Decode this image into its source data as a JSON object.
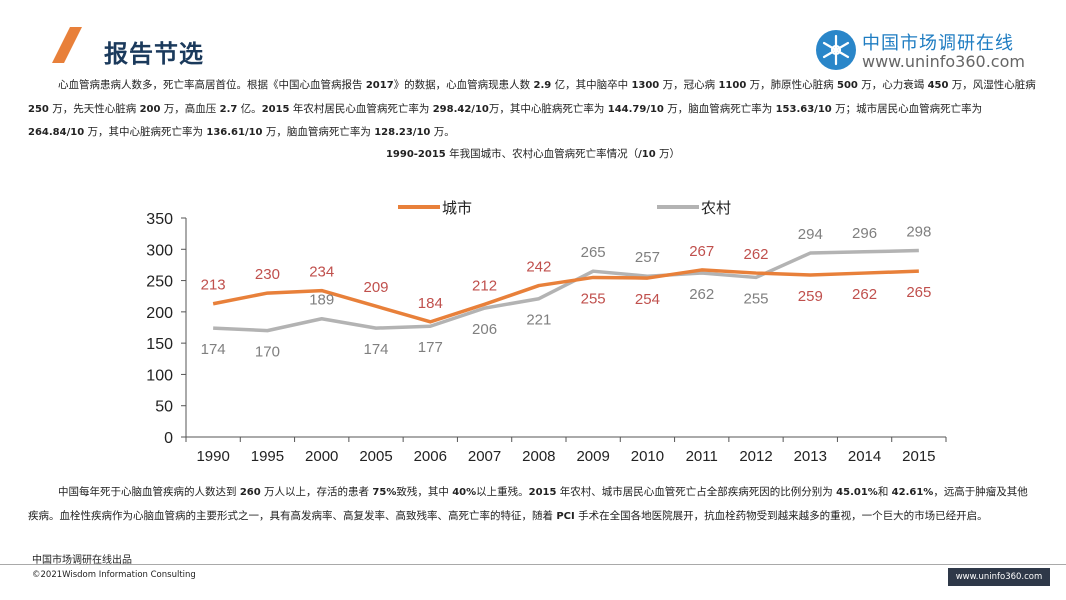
{
  "header": {
    "title": "报告节选",
    "accent_color": "#e8803a",
    "logo": {
      "name_cn": "中国市场调研在线",
      "url": "www.uninfo360.com",
      "icon": "snowflake-logo-icon"
    }
  },
  "intro_paragraph": [
    {
      "t": "心血管病患病人数多，死亡率高居首位。根据《中国心血管病报告 "
    },
    {
      "b": "2017"
    },
    {
      "t": "》的数据，心血管病现患人数 "
    },
    {
      "b": "2.9"
    },
    {
      "t": " 亿，其中脑卒中 "
    },
    {
      "b": "1300"
    },
    {
      "t": " 万，冠心病 "
    },
    {
      "b": "1100"
    },
    {
      "t": " 万，肺原性心脏病 "
    },
    {
      "b": "500"
    },
    {
      "t": " 万，心力衰竭 "
    },
    {
      "b": "450"
    },
    {
      "t": " 万，风湿性心脏病 "
    },
    {
      "b": "250"
    },
    {
      "t": " 万，先天性心脏病 "
    },
    {
      "b": "200"
    },
    {
      "t": " 万，高血压 "
    },
    {
      "b": "2.7"
    },
    {
      "t": " 亿。"
    },
    {
      "b": "2015"
    },
    {
      "t": " 年农村居民心血管病死亡率为 "
    },
    {
      "b": "298.42/10"
    },
    {
      "t": "万，其中心脏病死亡率为 "
    },
    {
      "b": "144.79/10"
    },
    {
      "t": " 万，脑血管病死亡率为 "
    },
    {
      "b": "153.63/10"
    },
    {
      "t": " 万"
    },
    {
      "t": "；城市居民心血管病死亡率为 "
    },
    {
      "b": "264.84/10"
    },
    {
      "t": " 万，其中心脏病死亡率为 "
    },
    {
      "b": "136.61/10"
    },
    {
      "t": " 万，脑血管病死亡率为 "
    },
    {
      "b": "128.23/10"
    },
    {
      "t": " 万。"
    }
  ],
  "chart_title": {
    "bold": "1990-2015",
    "rest": " 年我国城市、农村心血管病死亡率情况（",
    "bold2": "/10",
    "end": " 万）"
  },
  "chart_data": {
    "type": "line",
    "title": "1990-2015 年我国城市、农村心血管病死亡率情况（/10 万）",
    "xlabel": "",
    "ylabel": "",
    "categories": [
      "1990",
      "1995",
      "2000",
      "2005",
      "2006",
      "2007",
      "2008",
      "2009",
      "2010",
      "2011",
      "2012",
      "2013",
      "2014",
      "2015"
    ],
    "ylim": [
      0,
      350
    ],
    "yticks": [
      0,
      50,
      100,
      150,
      200,
      250,
      300,
      350
    ],
    "grid": false,
    "legend": "top",
    "series": [
      {
        "name": "城市",
        "color": "#e8803a",
        "label_color": "#c0504d",
        "values": [
          213,
          230,
          234,
          209,
          184,
          212,
          242,
          255,
          254,
          267,
          262,
          259,
          262,
          265
        ],
        "label_pos": [
          "above",
          "above",
          "above",
          "above",
          "above",
          "above",
          "above",
          "below",
          "below",
          "above",
          "above",
          "below",
          "below",
          "below"
        ]
      },
      {
        "name": "农村",
        "color": "#b3b3b3",
        "label_color": "#7f7f7f",
        "values": [
          174,
          170,
          189,
          174,
          177,
          206,
          221,
          265,
          257,
          262,
          255,
          294,
          296,
          298
        ],
        "label_pos": [
          "below",
          "below",
          "above",
          "below",
          "below",
          "below",
          "below",
          "above",
          "above",
          "below",
          "below",
          "above",
          "above",
          "above"
        ]
      }
    ]
  },
  "conclusion_paragraph": [
    {
      "t": "中国每年死于心脑血管疾病的人数达到 "
    },
    {
      "b": "260"
    },
    {
      "t": " 万人以上，存活的患者 "
    },
    {
      "b": "75%"
    },
    {
      "t": "致残，其中 "
    },
    {
      "b": "40%"
    },
    {
      "t": "以上重残。"
    },
    {
      "b": "2015"
    },
    {
      "t": " 年农村、城市居民心血管死亡占全部疾病死因的比例分别为 "
    },
    {
      "b": "45.01%"
    },
    {
      "t": "和 "
    },
    {
      "b": "42.61%"
    },
    {
      "t": "，"
    },
    {
      "t": "远高于肿瘤及其他疾病。血栓性疾病作为心脑血管病的主要形式之一，具有高发病率、高复发率、高致残率、高死亡率的特征，随着 "
    },
    {
      "b": "PCI"
    },
    {
      "t": " 手术在全国各地医院展开，抗血栓药物受到越来越"
    },
    {
      "t": "多的重视，一个巨大的市场已经开启。"
    }
  ],
  "footer": {
    "brand": "中国市场调研在线出品",
    "copyright": "©2021Wisdom Information Consulting",
    "url": "www.uninfo360.com"
  }
}
